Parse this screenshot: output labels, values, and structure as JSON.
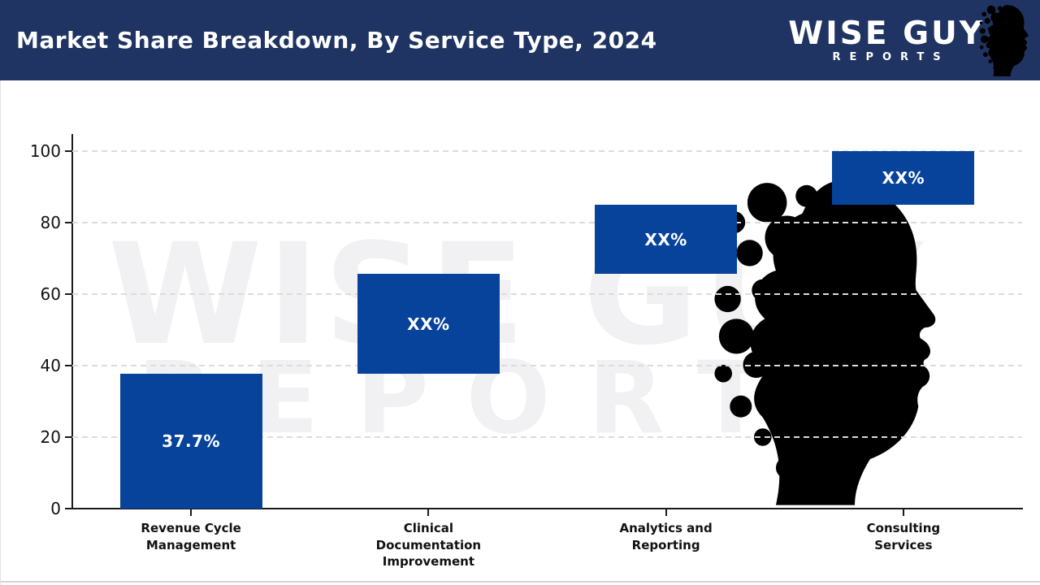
{
  "header": {
    "title": "Market Share Breakdown, By Service Type, 2024",
    "logo": {
      "line1": "WISE GUY",
      "line2": "REPORTS"
    }
  },
  "watermark": {
    "line1": "WISE GUY",
    "line2": "REPORTS"
  },
  "colors": {
    "header_bg": "#1f3462",
    "bar": "#07439b",
    "grid": "#dcdcdc",
    "watermark": "#f1f1f3",
    "title_text": "#ffffff",
    "axis_text": "#111111",
    "bar_label_text": "#ffffff"
  },
  "chart_data": {
    "type": "bar",
    "subtype": "waterfall",
    "title": "Market Share Breakdown, By Service Type, 2024",
    "categories": [
      [
        "Revenue Cycle",
        "Management"
      ],
      [
        "Clinical",
        "Documentation",
        "Improvement"
      ],
      [
        "Analytics and",
        "Reporting"
      ],
      [
        "Consulting",
        "Services"
      ]
    ],
    "segments": [
      {
        "start": 0,
        "end": 37.7,
        "label": "37.7%"
      },
      {
        "start": 37.7,
        "end": 65.5,
        "label": "XX%"
      },
      {
        "start": 65.5,
        "end": 84.8,
        "label": "XX%"
      },
      {
        "start": 84.8,
        "end": 100,
        "label": "XX%"
      }
    ],
    "yticks": [
      0,
      20,
      40,
      60,
      80,
      100
    ],
    "ylim": [
      0,
      105
    ],
    "xlabel": "",
    "ylabel": "",
    "grid": "horizontal-dashed",
    "legend": "none",
    "bar_color": "#07439b"
  }
}
